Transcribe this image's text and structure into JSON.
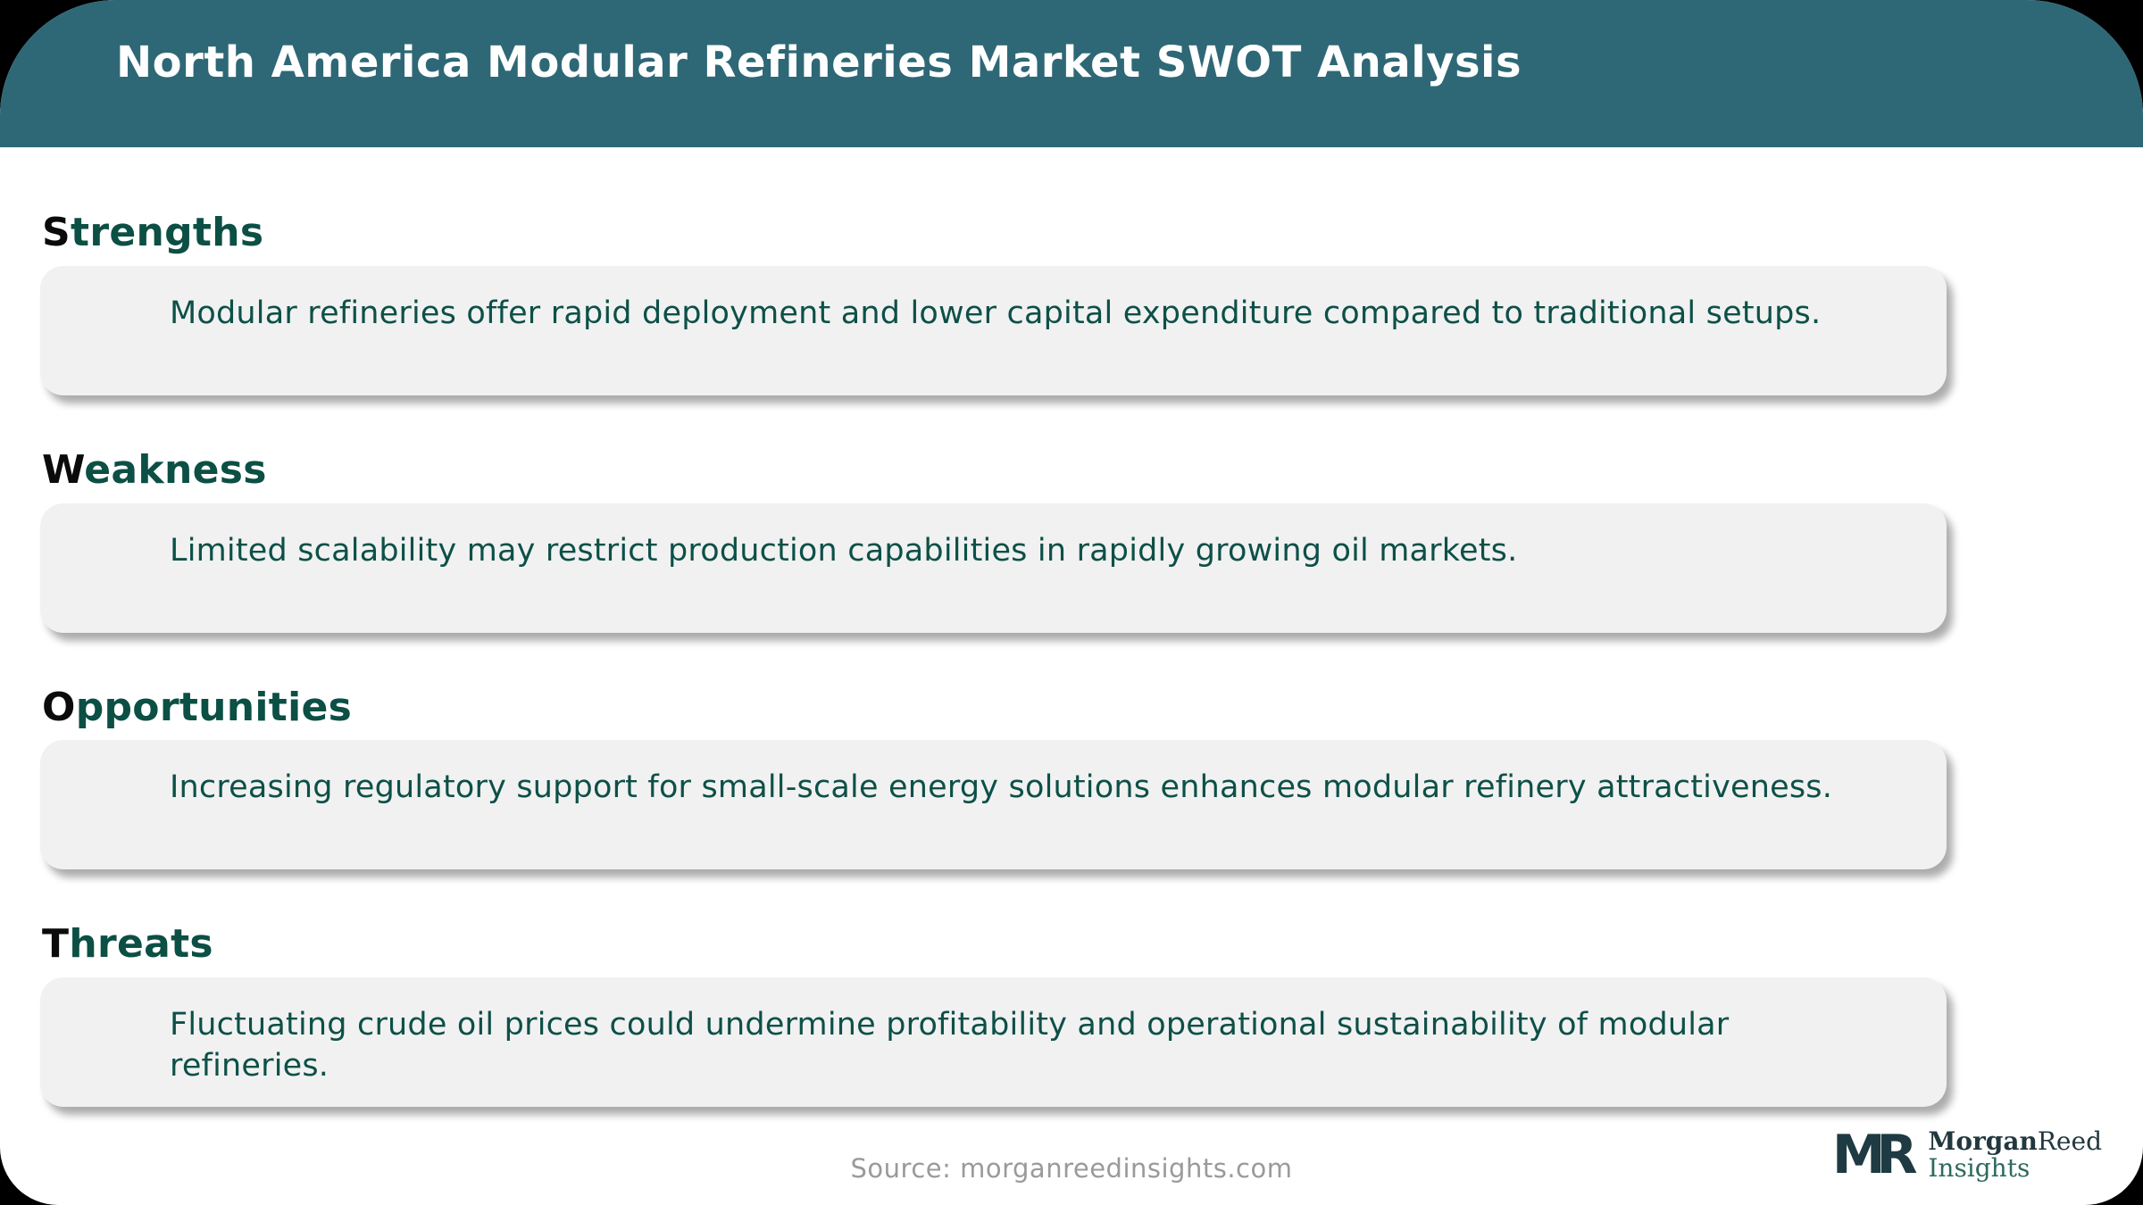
{
  "header": {
    "title": "North America Modular Refineries Market SWOT Analysis"
  },
  "sections": [
    {
      "id": "strengths",
      "label_first": "S",
      "label_rest": "trengths",
      "text": "Modular refineries offer rapid deployment and lower capital expenditure compared to traditional setups."
    },
    {
      "id": "weakness",
      "label_first": "W",
      "label_rest": "eakness",
      "text": "Limited scalability may restrict production capabilities in rapidly growing oil markets."
    },
    {
      "id": "opportunities",
      "label_first": "O",
      "label_rest": "pportunities",
      "text": "Increasing regulatory support for small-scale energy solutions enhances modular refinery attractiveness."
    },
    {
      "id": "threats",
      "label_first": "T",
      "label_rest": "hreats",
      "text": "Fluctuating crude oil prices could undermine profitability and operational sustainability of modular refineries."
    }
  ],
  "footer": {
    "source": "Source: morganreedinsights.com",
    "logo": {
      "monogram": "MR",
      "name_bold": "Morgan",
      "name_light": "Reed",
      "tagline": "Insights"
    }
  },
  "colors": {
    "page_background": "#000000",
    "card_background": "#ffffff",
    "header_background": "#2e6876",
    "title_text": "#ffffff",
    "heading_text": "#0c4f44",
    "heading_first_letter": "#0b0b0b",
    "box_background": "#f1f1f2",
    "box_text": "#0d5047",
    "source_text": "#9a9a9a",
    "logo_dark": "#1e3a42",
    "logo_teal": "#2e6a5e"
  }
}
